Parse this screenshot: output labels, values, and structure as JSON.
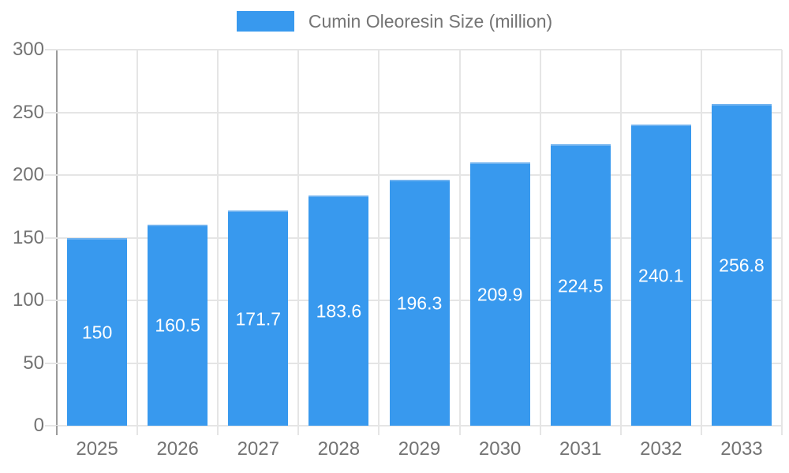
{
  "chart_data": {
    "type": "bar",
    "title": "",
    "legend_entries": [
      "Cumin Oleoresin Size (million)"
    ],
    "legend_position": "top-center",
    "categories": [
      "2025",
      "2026",
      "2027",
      "2028",
      "2029",
      "2030",
      "2031",
      "2032",
      "2033"
    ],
    "values": [
      150,
      160.5,
      171.7,
      183.6,
      196.3,
      209.9,
      224.5,
      240.1,
      256.8
    ],
    "value_labels": [
      "150",
      "160.5",
      "171.7",
      "183.6",
      "196.3",
      "209.9",
      "224.5",
      "240.1",
      "256.8"
    ],
    "xlabel": "",
    "ylabel": "",
    "ylim": [
      0,
      300
    ],
    "yticks": [
      0,
      50,
      100,
      150,
      200,
      250,
      300
    ],
    "grid": true,
    "value_label_placement": "centered-inside-bar"
  },
  "colors": {
    "bar": "#3899EE",
    "bar_top_edge": "#6FB2EF",
    "grid": "#E5E5E5",
    "axis_line": "#9B9B9B",
    "tick_label": "#737373",
    "legend_text": "#757575",
    "value_label": "#FFFFFF",
    "background": "#FFFFFF"
  }
}
